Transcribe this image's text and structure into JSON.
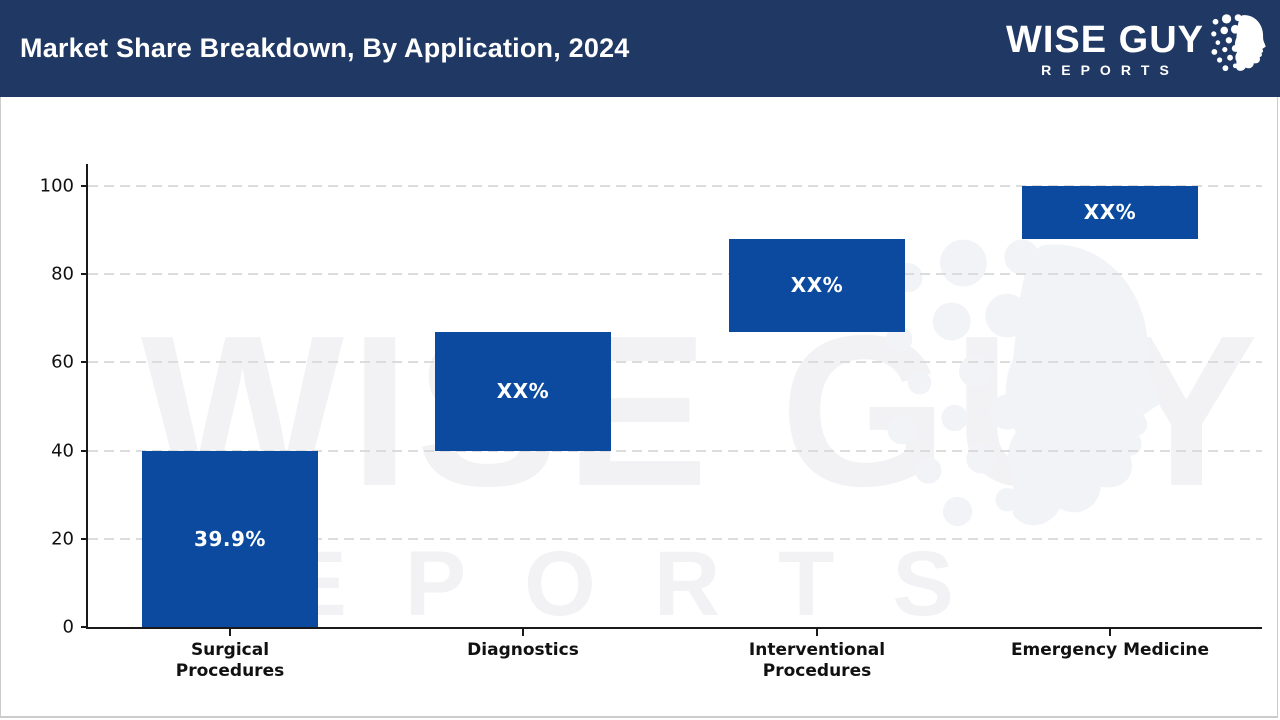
{
  "header": {
    "title": "Market Share Breakdown, By Application, 2024",
    "logo": {
      "name": "WISE GUY",
      "subtitle": "REPORTS"
    }
  },
  "watermark": {
    "line1": "WISE GUY",
    "line2": "REPORTS"
  },
  "colors": {
    "header_bg": "#1f3864",
    "bar": "#0b4a9e",
    "bar_label": "#ffffff",
    "grid": "#dcdcdc",
    "axis": "#1a1a1a",
    "watermark": "#f2f2f5",
    "frame_border": "#cccccc",
    "background": "#ffffff"
  },
  "chart_data": {
    "type": "bar",
    "subtype": "waterfall",
    "title": "Market Share Breakdown, By Application, 2024",
    "xlabel": "",
    "ylabel": "",
    "ylim": [
      0,
      105
    ],
    "yticks": [
      0,
      20,
      40,
      60,
      80,
      100
    ],
    "grid": "dashed-horizontal",
    "legend": "none",
    "categories": [
      "Surgical Procedures",
      "Diagnostics",
      "Interventional Procedures",
      "Emergency Medicine"
    ],
    "segments": [
      {
        "category": "Surgical Procedures",
        "label_lines": [
          "Surgical",
          "Procedures"
        ],
        "start": 0,
        "end": 39.9,
        "value": 39.9,
        "bar_label": "39.9%"
      },
      {
        "category": "Diagnostics",
        "label_lines": [
          "Diagnostics"
        ],
        "start": 39.9,
        "end": 67,
        "value": 27.1,
        "bar_label": "XX%"
      },
      {
        "category": "Interventional Procedures",
        "label_lines": [
          "Interventional",
          "Procedures"
        ],
        "start": 67,
        "end": 88,
        "value": 21,
        "bar_label": "XX%"
      },
      {
        "category": "Emergency Medicine",
        "label_lines": [
          "Emergency Medicine"
        ],
        "start": 88,
        "end": 100,
        "value": 12,
        "bar_label": "XX%"
      }
    ]
  }
}
